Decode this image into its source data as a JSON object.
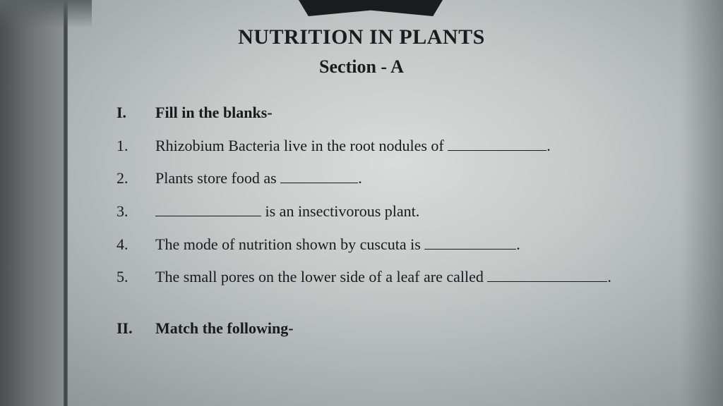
{
  "header": {
    "title": "NUTRITION IN PLANTS",
    "section": "Section - A"
  },
  "sectionI": {
    "num": "I.",
    "heading": "Fill in the blanks-",
    "items": [
      {
        "n": "1.",
        "before": "Rhizobium Bacteria live in the root nodules of",
        "blank_w": 140,
        "after": "."
      },
      {
        "n": "2.",
        "before": "Plants store food as",
        "blank_w": 110,
        "after": "."
      },
      {
        "n": "3.",
        "before": "",
        "blank_w": 150,
        "after": " is an insectivorous plant."
      },
      {
        "n": "4.",
        "before": "The mode of nutrition shown by cuscuta is",
        "blank_w": 130,
        "after": "."
      },
      {
        "n": "5.",
        "before": "The small pores on the lower side of a leaf are called",
        "blank_w": 170,
        "after": "."
      }
    ]
  },
  "sectionII": {
    "num": "II.",
    "heading": "Match the following-"
  }
}
